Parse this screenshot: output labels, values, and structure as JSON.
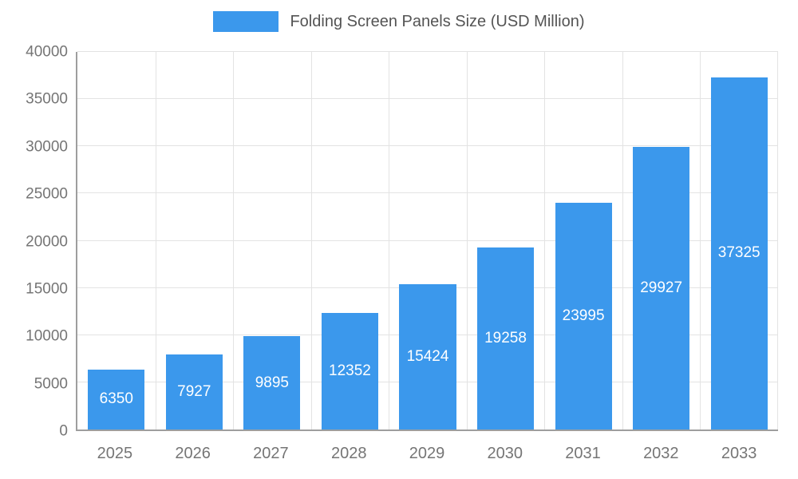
{
  "chart_data": {
    "type": "bar",
    "title": "Folding Screen Panels Size (USD Million)",
    "categories": [
      "2025",
      "2026",
      "2027",
      "2028",
      "2029",
      "2030",
      "2031",
      "2032",
      "2033"
    ],
    "values": [
      6350,
      7927,
      9895,
      12352,
      15424,
      19258,
      23995,
      29927,
      37325
    ],
    "xlabel": "",
    "ylabel": "",
    "ylim": [
      0,
      40000
    ],
    "ytick_step": 5000,
    "grid": true,
    "legend_position": "top",
    "colors": {
      "bar": "#3B98EC",
      "bar_label": "#FFFFFF",
      "axis_text": "#757575",
      "legend_text": "#545454",
      "gridline": "#E3E3E3",
      "axis_line": "#9E9E9E",
      "background": "#FFFFFF"
    }
  }
}
